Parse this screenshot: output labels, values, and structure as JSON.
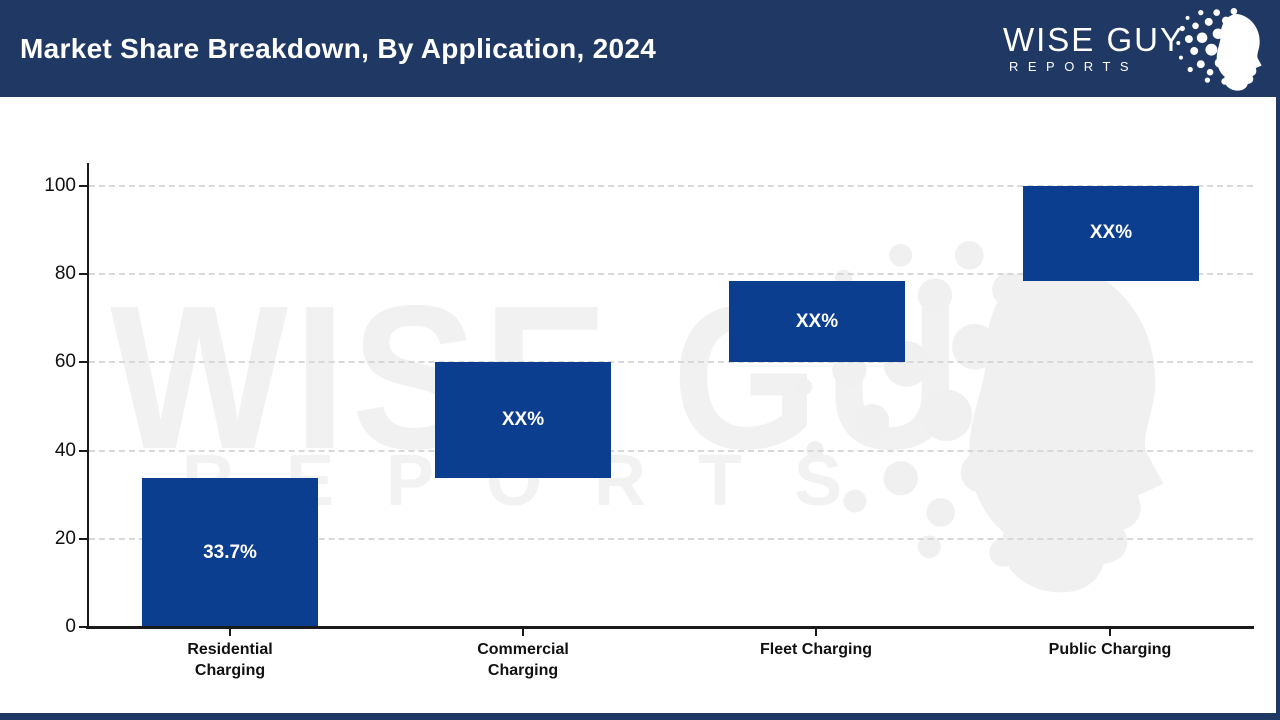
{
  "header": {
    "title": "Market Share Breakdown, By Application, 2024",
    "background_color": "#1f3864",
    "brand": {
      "line1": "WISE GUY",
      "line2": "REPORTS"
    }
  },
  "watermark": {
    "line1": "WISE GU",
    "line2": "REPORTS"
  },
  "chart_data": {
    "type": "bar",
    "variant": "waterfall",
    "title": "Market Share Breakdown, By Application, 2024",
    "categories": [
      "Residential Charging",
      "Commercial Charging",
      "Fleet Charging",
      "Public Charging"
    ],
    "category_lines": [
      [
        "Residential",
        "Charging"
      ],
      [
        "Commercial",
        "Charging"
      ],
      [
        "Fleet Charging"
      ],
      [
        "Public Charging"
      ]
    ],
    "segments": [
      {
        "category": "Residential Charging",
        "start": 0,
        "end": 33.7,
        "label": "33.7%"
      },
      {
        "category": "Commercial Charging",
        "start": 33.7,
        "end": 60,
        "label": "XX%"
      },
      {
        "category": "Fleet Charging",
        "start": 60,
        "end": 78.5,
        "label": "XX%"
      },
      {
        "category": "Public Charging",
        "start": 78.5,
        "end": 100,
        "label": "XX%"
      }
    ],
    "y_ticks": [
      0,
      20,
      40,
      60,
      80,
      100
    ],
    "ylim": [
      0,
      105
    ],
    "xlabel": "",
    "ylabel": "",
    "grid": "horizontal-dashed",
    "legend": "none",
    "bar_color": "#0c3e90",
    "value_label_color": "#ffffff",
    "grid_color": "#d8d8d8",
    "axis_color": "#1a1a1a"
  }
}
